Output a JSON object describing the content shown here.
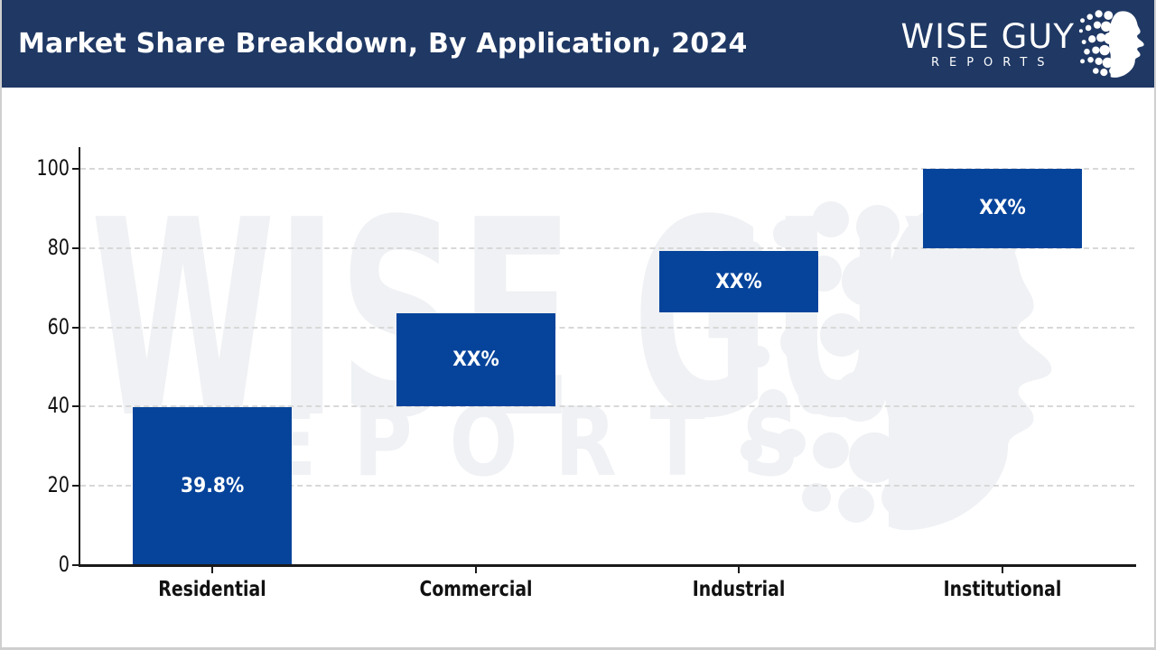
{
  "header": {
    "title": "Market Share Breakdown, By Application, 2024",
    "logo": {
      "primary": "WISE GUY",
      "secondary": "REPORTS"
    }
  },
  "watermark": {
    "primary": "WISE GUY",
    "secondary": "REPORTS"
  },
  "chart_data": {
    "type": "bar",
    "subtype": "waterfall",
    "title": "Market Share Breakdown, By Application, 2024",
    "categories": [
      "Residential",
      "Commercial",
      "Industrial",
      "Institutional"
    ],
    "bars": [
      {
        "category": "Residential",
        "start": 0,
        "end": 39.8,
        "value_label": "39.8%"
      },
      {
        "category": "Commercial",
        "start": 40,
        "end": 63.5,
        "value_label": "XX%"
      },
      {
        "category": "Industrial",
        "start": 63.7,
        "end": 79.3,
        "value_label": "XX%"
      },
      {
        "category": "Institutional",
        "start": 80,
        "end": 100,
        "value_label": "XX%"
      }
    ],
    "yticks": [
      0,
      20,
      40,
      60,
      80,
      100
    ],
    "ylim": [
      0,
      105
    ],
    "xlabel": "",
    "ylabel": "",
    "grid": "horizontal-dashed",
    "legend": null,
    "colors": {
      "bar": "#06449b",
      "header_bg": "#1f3864",
      "grid": "#d8d8d8",
      "axis": "#1a1a1a",
      "bar_label": "#ffffff",
      "watermark": "#eff1f4"
    }
  }
}
